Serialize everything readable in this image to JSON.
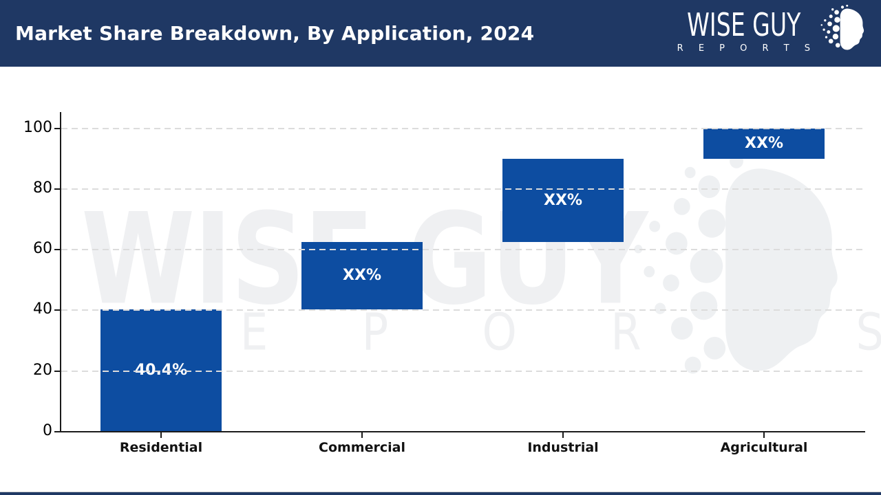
{
  "header": {
    "title": "Market Share Breakdown, By Application, 2024",
    "background_color": "#1f3864",
    "logo": {
      "line1": "WISE GUY",
      "line2": "R E P O R T S"
    }
  },
  "watermark": {
    "line1": "WISE GUY",
    "line2": "R E P O R T S"
  },
  "chart_data": {
    "type": "bar",
    "subtype": "waterfall",
    "title": "Market Share Breakdown, By Application, 2024",
    "categories": [
      "Residential",
      "Commercial",
      "Industrial",
      "Agricultural"
    ],
    "segments": [
      [
        0,
        40.4
      ],
      [
        40.4,
        62.5
      ],
      [
        62.5,
        90
      ],
      [
        90,
        100
      ]
    ],
    "bar_labels": [
      "40.4%",
      "XX%",
      "XX%",
      "XX%"
    ],
    "yticks": [
      0,
      20,
      40,
      60,
      80,
      100
    ],
    "ylim": [
      0,
      100
    ],
    "xlabel": "",
    "ylabel": "",
    "grid": "dashed horizontal gridlines at y ticks, drawn over bars",
    "legend": "none",
    "bar_color": "#0d4da1",
    "bar_label_color": "#ffffff",
    "axis_color": "#1a1a1a",
    "gridline_color": "#dcdcdc"
  }
}
